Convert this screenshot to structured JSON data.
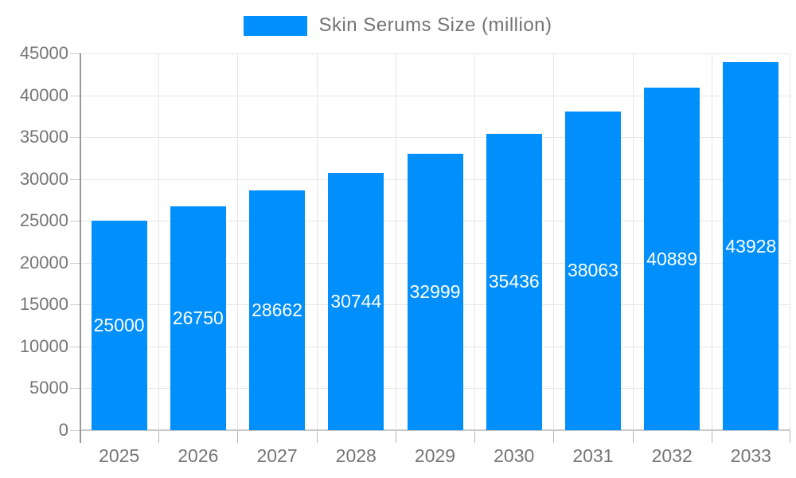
{
  "legend": {
    "label": "Skin Serums Size (million)"
  },
  "colors": {
    "bar": "#008FFB",
    "value_label": "#ffffff",
    "axis_label": "#757575",
    "legend_text": "#737373",
    "gridline": "#e6e6e6",
    "y_axis_line": "#999999",
    "baseline": "#c9c9c9"
  },
  "chart_data": {
    "type": "bar",
    "title": "Skin Serums Size (million)",
    "categories": [
      "2025",
      "2026",
      "2027",
      "2028",
      "2029",
      "2030",
      "2031",
      "2032",
      "2033"
    ],
    "values": [
      25000,
      26750,
      28662,
      30744,
      32999,
      35436,
      38063,
      40889,
      43928
    ],
    "value_labels": [
      "25000",
      "26750",
      "28662",
      "30744",
      "32999",
      "35436",
      "38063",
      "40889",
      "43928"
    ],
    "xlabel": "",
    "ylabel": "",
    "ylim": [
      0,
      45000
    ],
    "ytick_step": 5000,
    "ytick_labels": [
      "0",
      "5000",
      "10000",
      "15000",
      "20000",
      "25000",
      "30000",
      "35000",
      "40000",
      "45000"
    ],
    "grid": true,
    "legend_position": "top",
    "value_labels_position": "center-inside"
  }
}
